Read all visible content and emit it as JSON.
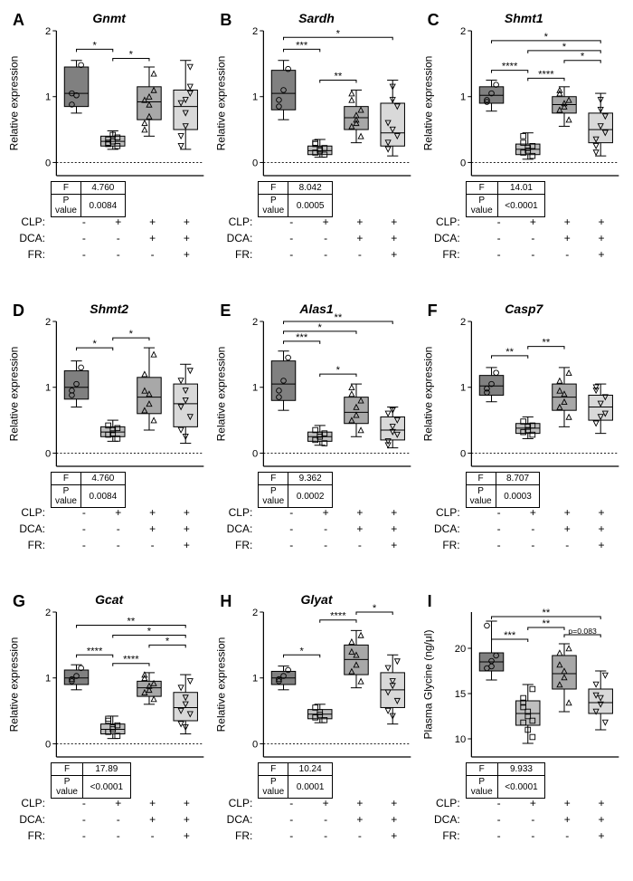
{
  "ylabel_default": "Relative expression",
  "stat_labels": {
    "f": "F",
    "p": "P value"
  },
  "condition_names": [
    "CLP:",
    "DCA:",
    "FR:"
  ],
  "condition_matrix": [
    [
      "-",
      "+",
      "+",
      "+"
    ],
    [
      "-",
      "-",
      "+",
      "+"
    ],
    [
      "-",
      "-",
      "-",
      "+"
    ]
  ],
  "colors": {
    "groups": [
      "#808080",
      "#bfbfbf",
      "#a8a8a8",
      "#d9d9d9"
    ],
    "axis": "#000000",
    "bg": "#ffffff"
  },
  "panels": [
    {
      "id": "A",
      "letter": "A",
      "title": "Gnmt",
      "italic": true,
      "ylabel": "Relative expression",
      "ylim": [
        -0.2,
        2
      ],
      "yticks": [
        0,
        1,
        2
      ],
      "dash_at": 0,
      "groups": [
        {
          "q1": 0.85,
          "med": 1.05,
          "q3": 1.45,
          "wl": 0.75,
          "wh": 1.55,
          "pts": [
            0.88,
            1.02,
            1.48,
            1.05
          ]
        },
        {
          "q1": 0.25,
          "med": 0.32,
          "q3": 0.4,
          "wl": 0.2,
          "wh": 0.48,
          "pts": [
            0.28,
            0.32,
            0.38,
            0.3,
            0.42,
            0.25,
            0.35
          ]
        },
        {
          "q1": 0.65,
          "med": 0.92,
          "q3": 1.15,
          "wl": 0.4,
          "wh": 1.45,
          "pts": [
            0.5,
            0.88,
            1.1,
            0.95,
            0.7,
            1.35,
            0.6,
            1.0
          ]
        },
        {
          "q1": 0.5,
          "med": 0.85,
          "q3": 1.1,
          "wl": 0.2,
          "wh": 1.55,
          "pts": [
            0.25,
            0.75,
            1.05,
            0.9,
            0.55,
            1.45,
            0.4,
            0.95,
            1.15
          ]
        }
      ],
      "stats": {
        "f": "4.760",
        "p": "0.0084"
      },
      "sig": [
        {
          "i": 0,
          "j": 1,
          "y": 1.72,
          "label": "*"
        },
        {
          "i": 1,
          "j": 2,
          "y": 1.58,
          "label": "*"
        }
      ]
    },
    {
      "id": "B",
      "letter": "B",
      "title": "Sardh",
      "italic": true,
      "ylabel": "Relative expression",
      "ylim": [
        -0.2,
        2
      ],
      "yticks": [
        0,
        1,
        2
      ],
      "dash_at": 0,
      "groups": [
        {
          "q1": 0.8,
          "med": 1.05,
          "q3": 1.4,
          "wl": 0.65,
          "wh": 1.55,
          "pts": [
            0.85,
            1.1,
            1.42,
            0.95
          ]
        },
        {
          "q1": 0.12,
          "med": 0.18,
          "q3": 0.25,
          "wl": 0.08,
          "wh": 0.35,
          "pts": [
            0.15,
            0.2,
            0.12,
            0.28,
            0.18,
            0.22,
            0.3
          ]
        },
        {
          "q1": 0.5,
          "med": 0.68,
          "q3": 0.85,
          "wl": 0.3,
          "wh": 1.1,
          "pts": [
            0.55,
            0.72,
            0.4,
            0.95,
            0.6,
            0.8,
            1.05,
            0.65
          ]
        },
        {
          "q1": 0.25,
          "med": 0.45,
          "q3": 0.9,
          "wl": 0.1,
          "wh": 1.25,
          "pts": [
            0.2,
            0.5,
            0.85,
            0.3,
            1.15,
            0.4,
            0.6,
            0.95
          ]
        }
      ],
      "stats": {
        "f": "8.042",
        "p": "0.0005"
      },
      "sig": [
        {
          "i": 0,
          "j": 1,
          "y": 1.72,
          "label": "***"
        },
        {
          "i": 1,
          "j": 2,
          "y": 1.25,
          "label": "**"
        },
        {
          "i": 0,
          "j": 3,
          "y": 1.9,
          "label": "*"
        }
      ]
    },
    {
      "id": "C",
      "letter": "C",
      "title": "Shmt1",
      "italic": true,
      "ylabel": "Relative expression",
      "ylim": [
        -0.2,
        2
      ],
      "yticks": [
        0,
        1,
        2
      ],
      "dash_at": 0,
      "groups": [
        {
          "q1": 0.9,
          "med": 1.02,
          "q3": 1.15,
          "wl": 0.78,
          "wh": 1.25,
          "pts": [
            0.95,
            1.05,
            1.18,
            0.92
          ]
        },
        {
          "q1": 0.12,
          "med": 0.2,
          "q3": 0.28,
          "wl": 0.05,
          "wh": 0.45,
          "pts": [
            0.15,
            0.22,
            0.1,
            0.3,
            0.18,
            0.25,
            0.4
          ]
        },
        {
          "q1": 0.75,
          "med": 0.88,
          "q3": 1.0,
          "wl": 0.55,
          "wh": 1.15,
          "pts": [
            0.8,
            0.9,
            0.65,
            1.05,
            0.85,
            0.95,
            1.1
          ]
        },
        {
          "q1": 0.3,
          "med": 0.5,
          "q3": 0.75,
          "wl": 0.1,
          "wh": 1.05,
          "pts": [
            0.25,
            0.55,
            0.7,
            0.35,
            0.95,
            0.45,
            0.15,
            0.8
          ]
        }
      ],
      "stats": {
        "f": "14.01",
        "p": "<0.0001"
      },
      "sig": [
        {
          "i": 0,
          "j": 1,
          "y": 1.4,
          "label": "****"
        },
        {
          "i": 1,
          "j": 2,
          "y": 1.28,
          "label": "****"
        },
        {
          "i": 2,
          "j": 3,
          "y": 1.55,
          "label": "*"
        },
        {
          "i": 0,
          "j": 3,
          "y": 1.85,
          "label": "*"
        },
        {
          "i": 1,
          "j": 3,
          "y": 1.7,
          "label": "*"
        }
      ]
    },
    {
      "id": "D",
      "letter": "D",
      "title": "Shmt2",
      "italic": true,
      "ylabel": "Relative expression",
      "ylim": [
        -0.2,
        2
      ],
      "yticks": [
        0,
        1,
        2
      ],
      "dash_at": 0,
      "groups": [
        {
          "q1": 0.82,
          "med": 1.0,
          "q3": 1.25,
          "wl": 0.7,
          "wh": 1.4,
          "pts": [
            0.88,
            1.05,
            1.3,
            0.95
          ]
        },
        {
          "q1": 0.25,
          "med": 0.32,
          "q3": 0.4,
          "wl": 0.18,
          "wh": 0.5,
          "pts": [
            0.28,
            0.35,
            0.22,
            0.42,
            0.3,
            0.38
          ]
        },
        {
          "q1": 0.6,
          "med": 0.85,
          "q3": 1.15,
          "wl": 0.35,
          "wh": 1.6,
          "pts": [
            0.65,
            0.9,
            0.5,
            1.2,
            0.75,
            1.5,
            0.95
          ]
        },
        {
          "q1": 0.4,
          "med": 0.75,
          "q3": 1.05,
          "wl": 0.15,
          "wh": 1.35,
          "pts": [
            0.35,
            0.8,
            0.55,
            1.1,
            0.25,
            1.25,
            0.7,
            0.95
          ]
        }
      ],
      "stats": {
        "f": "4.760",
        "p": "0.0084"
      },
      "sig": [
        {
          "i": 0,
          "j": 1,
          "y": 1.6,
          "label": "*"
        },
        {
          "i": 1,
          "j": 2,
          "y": 1.75,
          "label": "*"
        }
      ]
    },
    {
      "id": "E",
      "letter": "E",
      "title": "Alas1",
      "italic": true,
      "ylabel": "Relative expression",
      "ylim": [
        -0.2,
        2
      ],
      "yticks": [
        0,
        1,
        2
      ],
      "dash_at": 0,
      "groups": [
        {
          "q1": 0.8,
          "med": 1.05,
          "q3": 1.4,
          "wl": 0.65,
          "wh": 1.55,
          "pts": [
            0.85,
            1.1,
            1.45,
            0.95
          ]
        },
        {
          "q1": 0.18,
          "med": 0.25,
          "q3": 0.32,
          "wl": 0.12,
          "wh": 0.42,
          "pts": [
            0.2,
            0.28,
            0.15,
            0.35,
            0.25,
            0.3
          ]
        },
        {
          "q1": 0.45,
          "med": 0.62,
          "q3": 0.85,
          "wl": 0.25,
          "wh": 1.05,
          "pts": [
            0.5,
            0.7,
            0.35,
            0.9,
            0.58,
            0.8,
            1.0
          ]
        },
        {
          "q1": 0.2,
          "med": 0.35,
          "q3": 0.55,
          "wl": 0.08,
          "wh": 0.7,
          "pts": [
            0.18,
            0.4,
            0.28,
            0.6,
            0.32,
            0.5,
            0.12,
            0.65
          ]
        }
      ],
      "stats": {
        "f": "9.362",
        "p": "0.0002"
      },
      "sig": [
        {
          "i": 0,
          "j": 1,
          "y": 1.7,
          "label": "***"
        },
        {
          "i": 1,
          "j": 2,
          "y": 1.2,
          "label": "*"
        },
        {
          "i": 0,
          "j": 2,
          "y": 1.85,
          "label": "*"
        },
        {
          "i": 0,
          "j": 3,
          "y": 2.0,
          "label": "**"
        }
      ]
    },
    {
      "id": "F",
      "letter": "F",
      "title": "Casp7",
      "italic": true,
      "ylabel": "Relative expression",
      "ylim": [
        -0.2,
        2
      ],
      "yticks": [
        0,
        1,
        2
      ],
      "dash_at": 0,
      "groups": [
        {
          "q1": 0.88,
          "med": 1.02,
          "q3": 1.18,
          "wl": 0.78,
          "wh": 1.3,
          "pts": [
            0.92,
            1.05,
            1.22,
            0.98
          ]
        },
        {
          "q1": 0.3,
          "med": 0.38,
          "q3": 0.45,
          "wl": 0.22,
          "wh": 0.55,
          "pts": [
            0.32,
            0.4,
            0.28,
            0.48,
            0.35,
            0.42
          ]
        },
        {
          "q1": 0.65,
          "med": 0.85,
          "q3": 1.05,
          "wl": 0.4,
          "wh": 1.3,
          "pts": [
            0.7,
            0.9,
            0.55,
            1.1,
            0.78,
            1.22,
            0.95
          ]
        },
        {
          "q1": 0.5,
          "med": 0.7,
          "q3": 0.88,
          "wl": 0.3,
          "wh": 1.05,
          "pts": [
            0.45,
            0.75,
            0.6,
            0.95,
            0.55,
            0.85,
            1.0
          ]
        }
      ],
      "stats": {
        "f": "8.707",
        "p": "0.0003"
      },
      "sig": [
        {
          "i": 0,
          "j": 1,
          "y": 1.48,
          "label": "**"
        },
        {
          "i": 1,
          "j": 2,
          "y": 1.62,
          "label": "**"
        }
      ]
    },
    {
      "id": "G",
      "letter": "G",
      "title": "Gcat",
      "italic": true,
      "ylabel": "Relative expression",
      "ylim": [
        -0.2,
        2
      ],
      "yticks": [
        0,
        1,
        2
      ],
      "dash_at": 0,
      "groups": [
        {
          "q1": 0.9,
          "med": 1.0,
          "q3": 1.12,
          "wl": 0.82,
          "wh": 1.2,
          "pts": [
            0.95,
            1.03,
            1.15,
            0.98
          ]
        },
        {
          "q1": 0.15,
          "med": 0.22,
          "q3": 0.3,
          "wl": 0.08,
          "wh": 0.42,
          "pts": [
            0.18,
            0.25,
            0.12,
            0.35,
            0.22,
            0.28,
            0.38
          ]
        },
        {
          "q1": 0.72,
          "med": 0.85,
          "q3": 0.95,
          "wl": 0.6,
          "wh": 1.08,
          "pts": [
            0.78,
            0.88,
            0.68,
            1.0,
            0.82,
            0.92,
            1.05
          ]
        },
        {
          "q1": 0.35,
          "med": 0.55,
          "q3": 0.78,
          "wl": 0.15,
          "wh": 1.05,
          "pts": [
            0.3,
            0.6,
            0.45,
            0.85,
            0.25,
            0.95,
            0.5,
            0.7
          ]
        }
      ],
      "stats": {
        "f": "17.89",
        "p": "<0.0001"
      },
      "sig": [
        {
          "i": 0,
          "j": 1,
          "y": 1.35,
          "label": "****"
        },
        {
          "i": 1,
          "j": 2,
          "y": 1.22,
          "label": "****"
        },
        {
          "i": 2,
          "j": 3,
          "y": 1.5,
          "label": "*"
        },
        {
          "i": 1,
          "j": 3,
          "y": 1.65,
          "label": "*"
        },
        {
          "i": 0,
          "j": 3,
          "y": 1.8,
          "label": "**"
        }
      ]
    },
    {
      "id": "H",
      "letter": "H",
      "title": "Glyat",
      "italic": true,
      "ylabel": "Relative expression",
      "ylim": [
        -0.2,
        2
      ],
      "yticks": [
        0,
        1,
        2
      ],
      "dash_at": 0,
      "groups": [
        {
          "q1": 0.9,
          "med": 1.0,
          "q3": 1.1,
          "wl": 0.82,
          "wh": 1.18,
          "pts": [
            0.95,
            1.03,
            1.12,
            0.98
          ]
        },
        {
          "q1": 0.38,
          "med": 0.45,
          "q3": 0.52,
          "wl": 0.32,
          "wh": 0.6,
          "pts": [
            0.4,
            0.48,
            0.36,
            0.55,
            0.44
          ]
        },
        {
          "q1": 1.05,
          "med": 1.28,
          "q3": 1.5,
          "wl": 0.85,
          "wh": 1.72,
          "pts": [
            1.1,
            1.35,
            0.95,
            1.55,
            1.2,
            1.65,
            1.4
          ]
        },
        {
          "q1": 0.55,
          "med": 0.82,
          "q3": 1.08,
          "wl": 0.3,
          "wh": 1.35,
          "pts": [
            0.5,
            0.88,
            0.65,
            1.15,
            0.42,
            1.25,
            0.78,
            0.95
          ]
        }
      ],
      "stats": {
        "f": "10.24",
        "p": "0.0001"
      },
      "sig": [
        {
          "i": 0,
          "j": 1,
          "y": 1.35,
          "label": "*"
        },
        {
          "i": 1,
          "j": 2,
          "y": 1.88,
          "label": "****"
        },
        {
          "i": 2,
          "j": 3,
          "y": 2.0,
          "label": "*"
        }
      ]
    },
    {
      "id": "I",
      "letter": "I",
      "title": "",
      "italic": false,
      "ylabel": "Plasma Glycine (ng/μl)",
      "ylim": [
        8,
        24
      ],
      "yticks": [
        10,
        15,
        20
      ],
      "dash_at": null,
      "groups": [
        {
          "q1": 17.5,
          "med": 18.5,
          "q3": 19.5,
          "wl": 16.5,
          "wh": 23.0,
          "pts": [
            17.8,
            18.6,
            19.2,
            22.5,
            18.0
          ]
        },
        {
          "q1": 11.5,
          "med": 12.8,
          "q3": 14.2,
          "wl": 9.5,
          "wh": 16.0,
          "pts": [
            11.8,
            13.0,
            10.2,
            14.5,
            12.5,
            15.5,
            13.5,
            11.0,
            12.0,
            14.0
          ]
        },
        {
          "q1": 15.5,
          "med": 17.2,
          "q3": 19.2,
          "wl": 13.0,
          "wh": 20.5,
          "pts": [
            16.0,
            17.5,
            14.0,
            19.5,
            16.8,
            20.0,
            18.2
          ]
        },
        {
          "q1": 12.8,
          "med": 14.0,
          "q3": 15.5,
          "wl": 11.0,
          "wh": 17.5,
          "pts": [
            13.0,
            14.5,
            11.8,
            16.0,
            13.8,
            17.0,
            14.8
          ]
        }
      ],
      "stats": {
        "f": "9.933",
        "p": "<0.0001"
      },
      "sig": [
        {
          "i": 0,
          "j": 1,
          "y": 21.0,
          "label": "***"
        },
        {
          "i": 1,
          "j": 2,
          "y": 22.3,
          "label": "**"
        },
        {
          "i": 2,
          "j": 3,
          "y": 21.5,
          "label": "p=0.083",
          "small": true
        },
        {
          "i": 0,
          "j": 3,
          "y": 23.5,
          "label": "**"
        }
      ]
    }
  ]
}
